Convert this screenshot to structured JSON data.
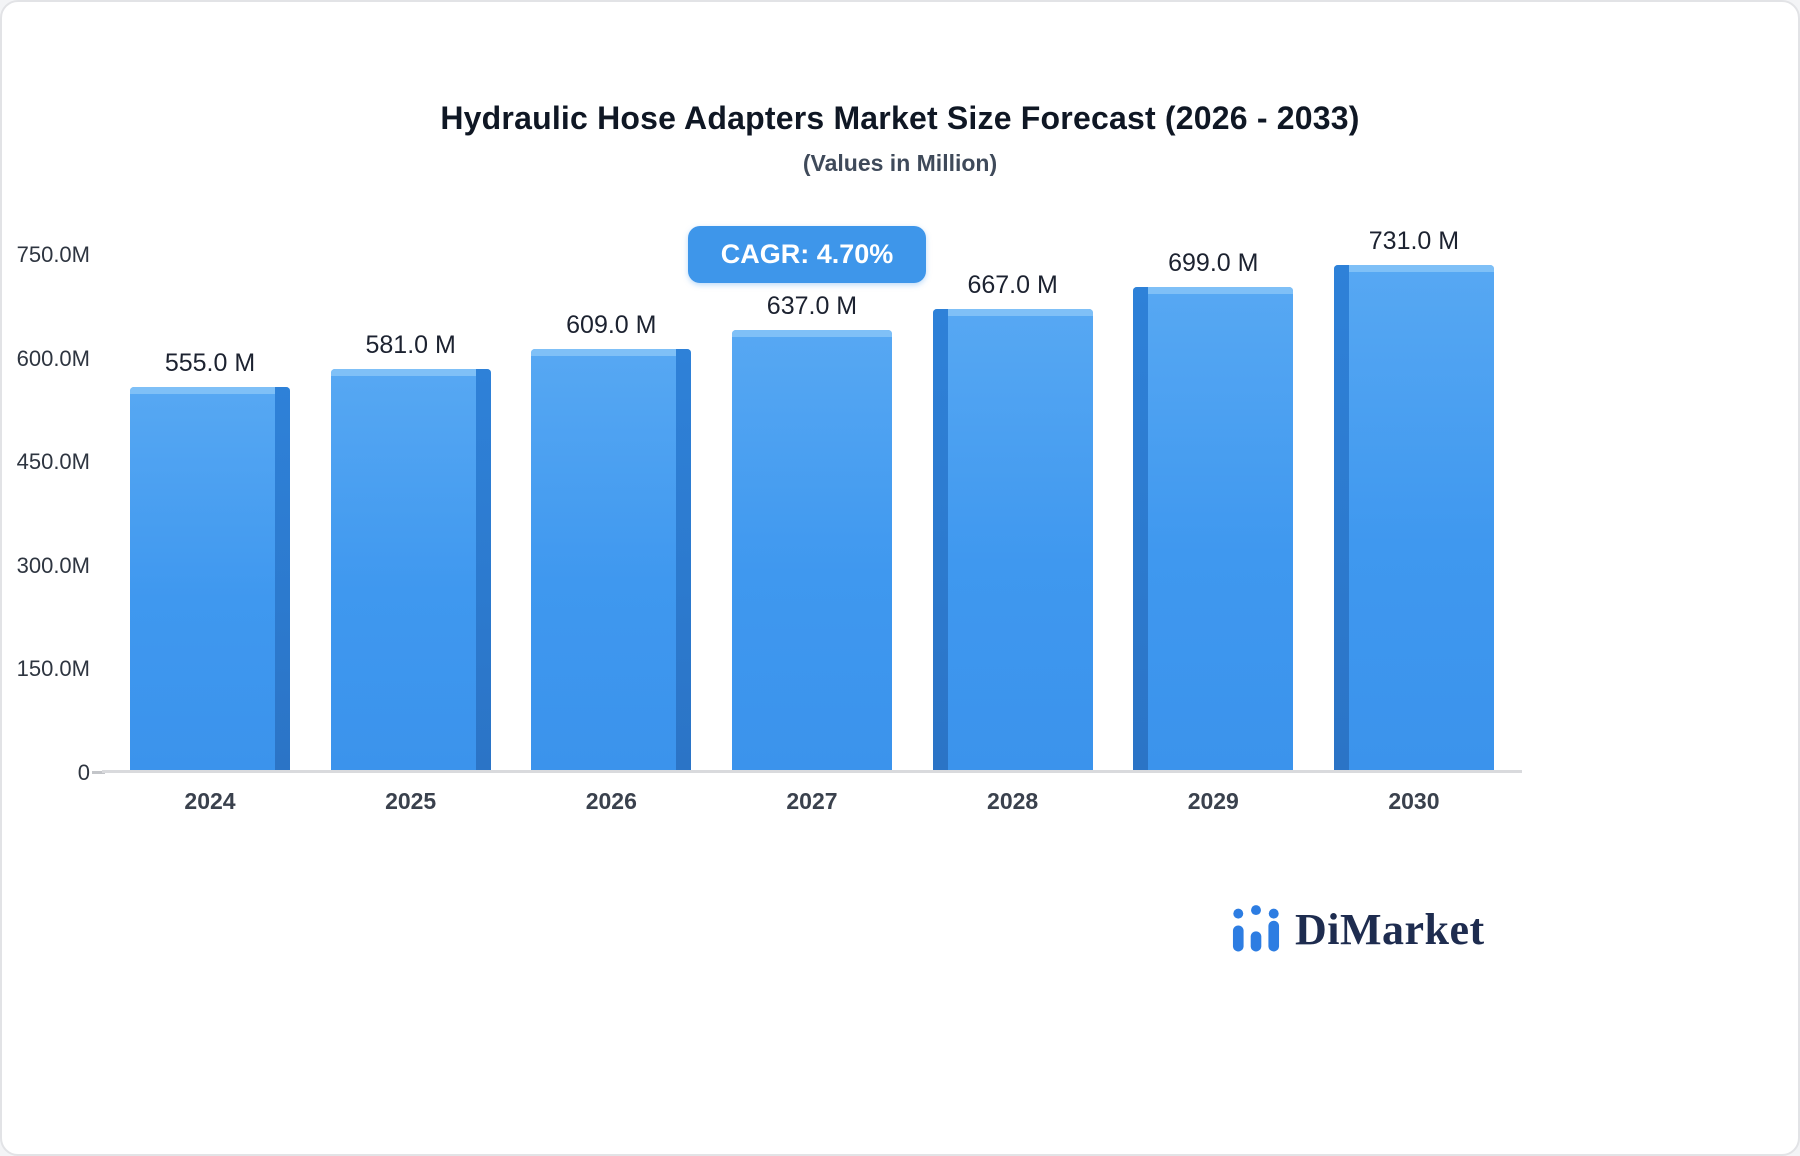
{
  "header": {
    "title": "Hydraulic Hose Adapters Market Size Forecast (2026 - 2033)",
    "subtitle": "(Values in Million)"
  },
  "badge": {
    "label": "CAGR: 4.70%"
  },
  "chart_data": {
    "type": "bar",
    "title": "Hydraulic Hose Adapters Market Size Forecast (2026 - 2033)",
    "subtitle": "(Values in Million)",
    "categories": [
      "2024",
      "2025",
      "2026",
      "2027",
      "2028",
      "2029",
      "2030"
    ],
    "values": [
      555,
      581,
      609,
      637,
      667,
      699,
      731
    ],
    "value_labels": [
      "555.0 M",
      "581.0 M",
      "609.0 M",
      "637.0 M",
      "667.0 M",
      "699.0 M",
      "731.0 M"
    ],
    "unit": "Million",
    "xlabel": "",
    "ylabel": "",
    "ylim": [
      0,
      750
    ],
    "yticks": [
      "750.0M",
      "600.0M",
      "450.0M",
      "300.0M",
      "150.0M",
      "0"
    ],
    "grid": false,
    "legend": false,
    "annotation": "CAGR: 4.70%",
    "bar_color": "#3f98ef",
    "bar_side_color": "#2b76c8",
    "bar_top_color": "#7fc0f7"
  },
  "footer": {
    "brand": "DiMarket"
  },
  "colors": {
    "badge_bg": "#3e96ea",
    "title_text": "#0f1724",
    "subtitle_text": "#3f4a5a",
    "axis_line": "#d9dadd",
    "brand_navy": "#1e2c4f",
    "brand_blue": "#2d7de2"
  }
}
